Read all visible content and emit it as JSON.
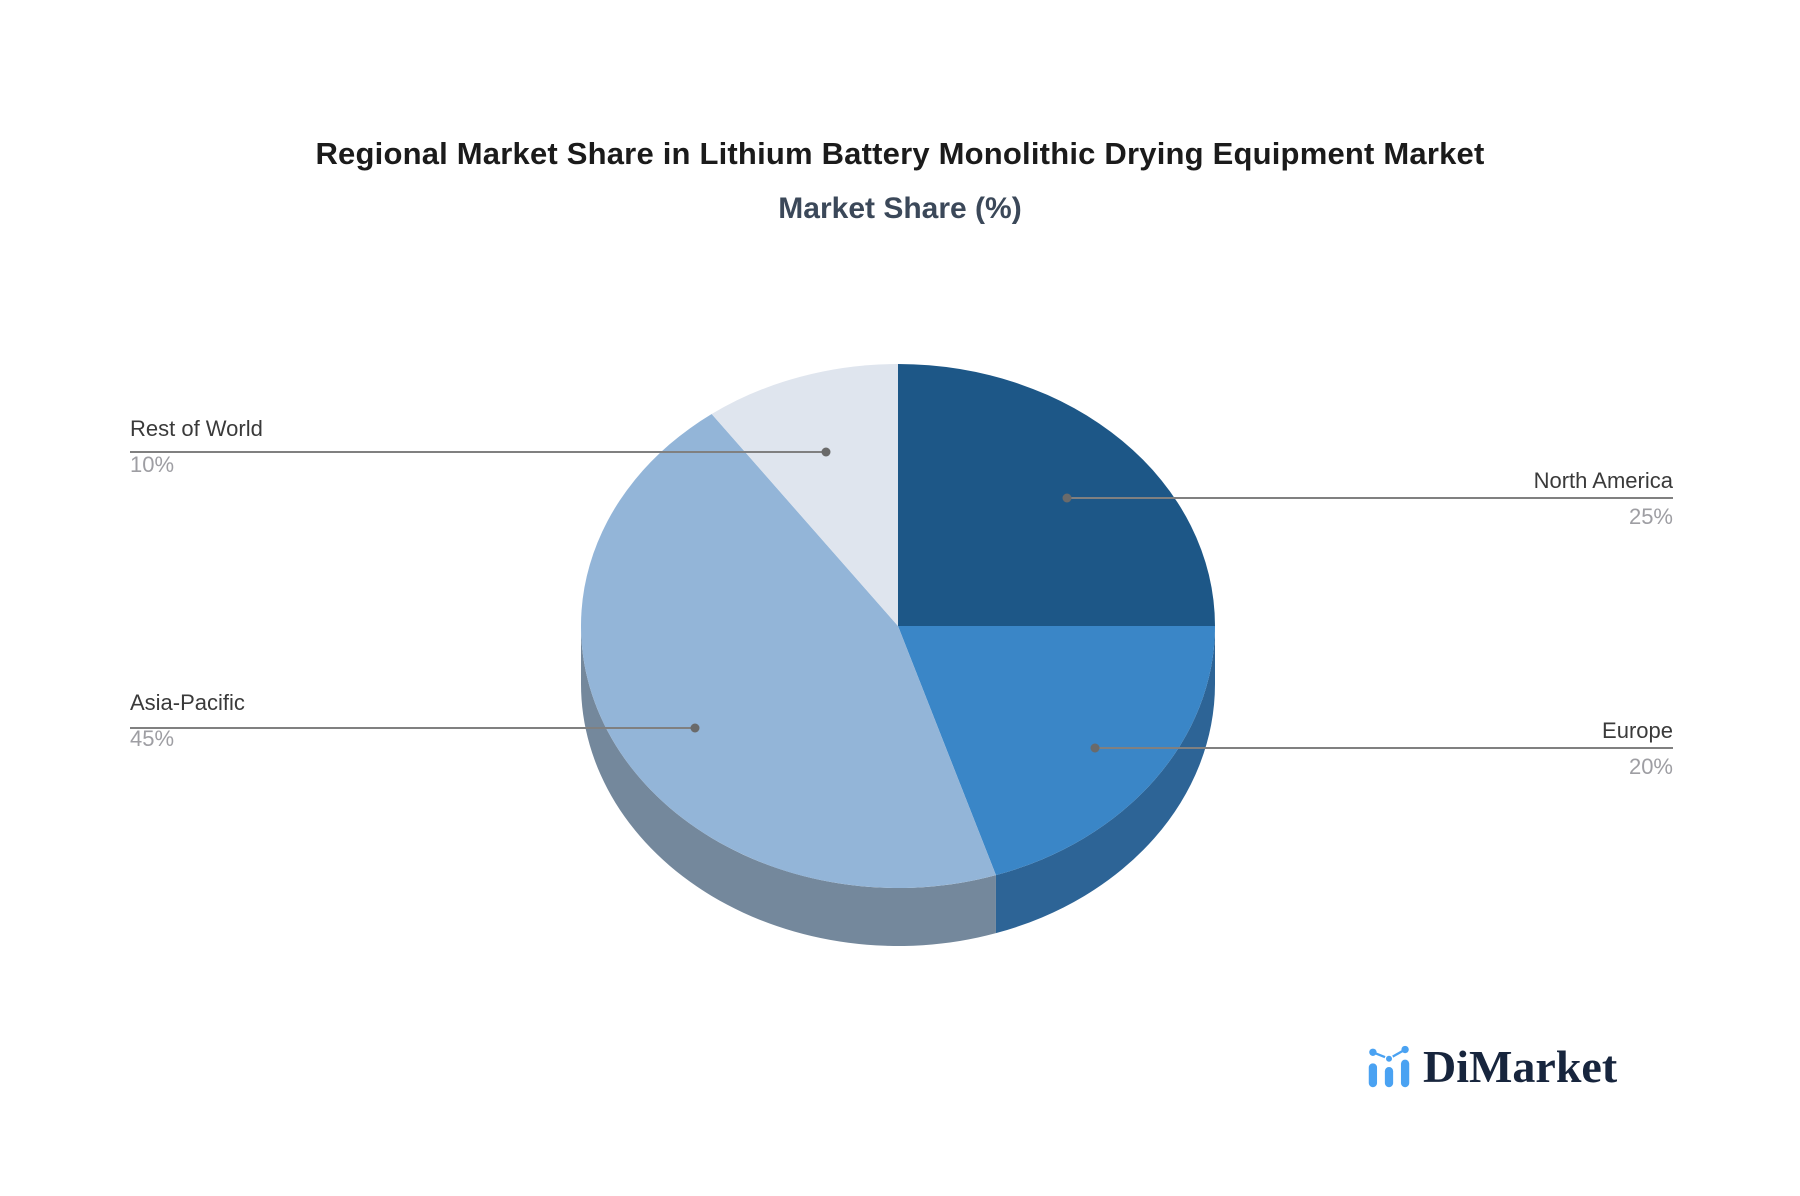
{
  "title": "Regional Market Share in Lithium Battery Monolithic Drying Equipment Market",
  "subtitle": "Market Share (%)",
  "brand": {
    "name": "DiMarket",
    "icon": "bar-line-chart-icon",
    "icon_color": "#4aa2f2",
    "text_color": "#17253d"
  },
  "colors": {
    "background": "#ffffff",
    "title": "#1b1b1b",
    "subtitle": "#3b4859",
    "leader_line": "#808080",
    "leader_dot": "#6a6a6a",
    "label_name": "#3a3a3a",
    "label_value": "#9e9ea3"
  },
  "chart_data": {
    "type": "pie",
    "title": "Regional Market Share in Lithium Battery Monolithic Drying Equipment Market",
    "subtitle": "Market Share (%)",
    "unit": "%",
    "style": "pie-with-3d-depth",
    "start_angle": "12-oclock",
    "direction": "clockwise",
    "legend_position": "callout-labels",
    "slices": [
      {
        "label": "North America",
        "value": 25,
        "display": "25%",
        "color": "#1d5787",
        "depth_color": "#2d6496"
      },
      {
        "label": "Europe",
        "value": 20,
        "display": "20%",
        "color": "#3a86c7",
        "depth_color": "#2d6496"
      },
      {
        "label": "Asia-Pacific",
        "value": 45,
        "display": "45%",
        "color": "#93b5d8",
        "depth_color": "#74889c"
      },
      {
        "label": "Rest of World",
        "value": 10,
        "display": "10%",
        "color": "#dfe5ee",
        "depth_color": "#c6cdd8"
      }
    ]
  }
}
